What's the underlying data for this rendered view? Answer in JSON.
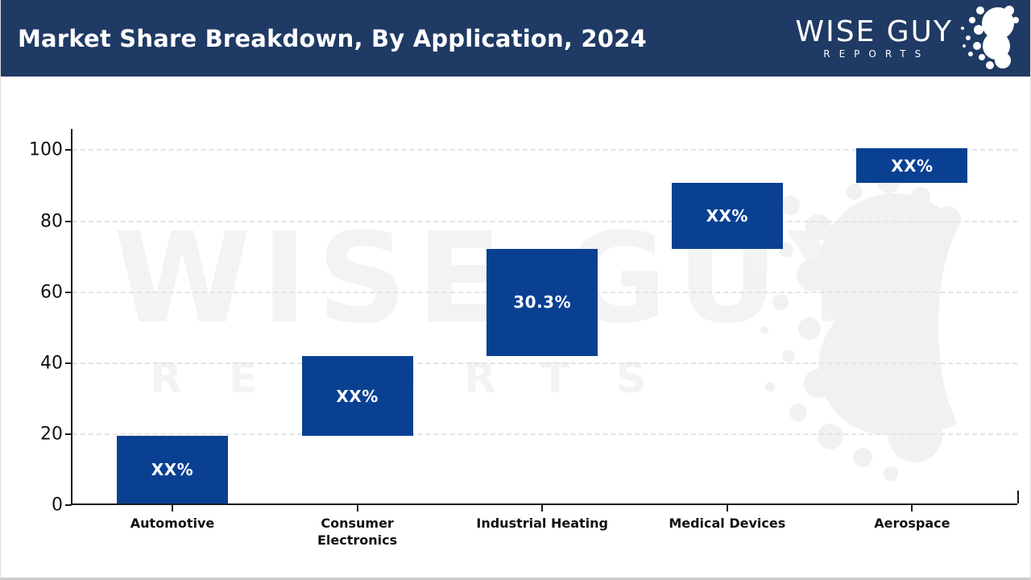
{
  "header": {
    "title": "Market Share Breakdown, By Application, 2024",
    "logo": {
      "wordmark": "WISE GUY",
      "subtitle": "REPORTS"
    }
  },
  "watermark": {
    "line1": "WISE GUY",
    "line2": "REPORTS"
  },
  "chart_data": {
    "type": "bar",
    "subtype": "waterfall",
    "title": "Market Share Breakdown, By Application, 2024",
    "categories": [
      "Automotive",
      "Consumer Electronics",
      "Industrial Heating",
      "Medical Devices",
      "Aerospace"
    ],
    "segments": [
      {
        "category": "Automotive",
        "start": 0,
        "end": 19,
        "label": "XX%"
      },
      {
        "category": "Consumer Electronics",
        "start": 19,
        "end": 41.5,
        "label": "XX%"
      },
      {
        "category": "Industrial Heating",
        "start": 41.5,
        "end": 71.8,
        "label": "30.3%"
      },
      {
        "category": "Medical Devices",
        "start": 71.8,
        "end": 90.4,
        "label": "XX%"
      },
      {
        "category": "Aerospace",
        "start": 90.4,
        "end": 100,
        "label": "XX%"
      }
    ],
    "yticks": [
      0,
      20,
      40,
      60,
      80,
      100
    ],
    "ylim": [
      0,
      106
    ],
    "xlabel": "",
    "ylabel": "",
    "grid": "horizontal-dashed",
    "legend": "none",
    "bar_color": "#0a4092",
    "bar_label_color": "#ffffff"
  },
  "colors": {
    "header_bg": "#1f3a64",
    "bar": "#0a4092",
    "grid": "#e4e4e4",
    "axis": "#1a1a1a",
    "watermark": "#f3f3f3",
    "page_border": "#cccccc"
  }
}
